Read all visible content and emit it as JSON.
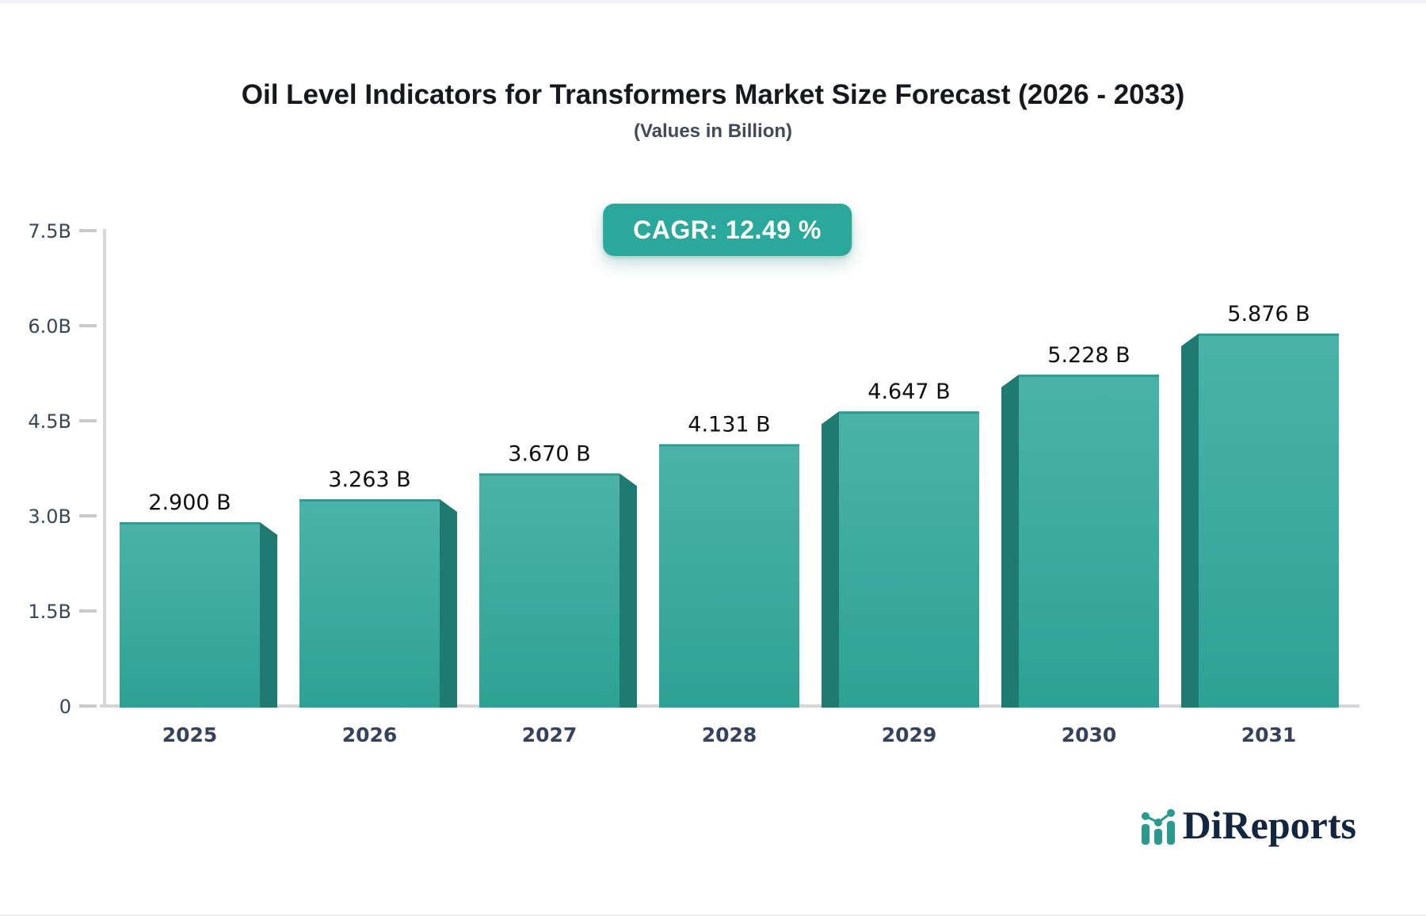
{
  "title": "Oil Level Indicators for Transformers Market Size Forecast (2026 - 2033)",
  "subtitle": "(Values in Billion)",
  "badge": {
    "label": "CAGR: 12.49 %"
  },
  "chart_data": {
    "type": "bar",
    "title": "Oil Level Indicators for Transformers Market Size Forecast (2026 - 2033)",
    "subtitle": "(Values in Billion)",
    "categories": [
      "2025",
      "2026",
      "2027",
      "2028",
      "2029",
      "2030",
      "2031"
    ],
    "values": [
      2.9,
      3.263,
      3.67,
      4.131,
      4.647,
      5.228,
      5.876
    ],
    "value_labels": [
      "2.900 B",
      "3.263 B",
      "3.670 B",
      "4.131 B",
      "4.647 B",
      "5.228 B",
      "5.876 B"
    ],
    "unit": "Billion",
    "xlabel": "",
    "ylabel": "",
    "ylim": [
      0,
      7.5
    ],
    "ytick_values": [
      0,
      1.5,
      3.0,
      4.5,
      6.0,
      7.5
    ],
    "ytick_labels": [
      "0",
      "1.5B",
      "3.0B",
      "4.5B",
      "6.0B",
      "7.5B"
    ],
    "grid": false,
    "legend": false
  },
  "colors": {
    "accent_teal": "#2aa89c",
    "bar_face_top": "#4bb3a9",
    "bar_face_bottom": "#2ea195",
    "bar_top_edge": "#2e9c91",
    "bar_side": "#1f7b72",
    "axis_line": "#d5d7dd",
    "tick_dash": "#c7cad1",
    "badge_text": "#ffffff",
    "logo_navy": "#142540",
    "logo_teal": "#2a9a90"
  },
  "logo": {
    "text": "DiReports"
  }
}
